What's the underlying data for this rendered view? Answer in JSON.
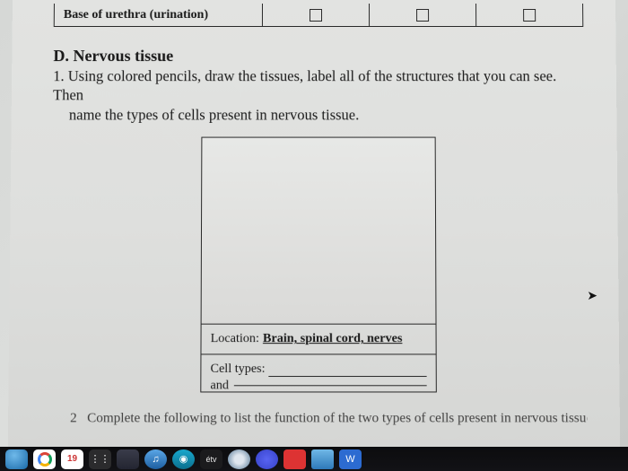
{
  "topRow": {
    "label": "Base of urethra (urination)",
    "checkbox_count": 3
  },
  "section": {
    "heading": "D.  Nervous tissue",
    "item_number": "1.",
    "instruction_line1": "Using colored pencils, draw the tissues, label all of the structures that you can see. Then",
    "instruction_line2": "name the types of cells present in nervous tissue."
  },
  "drawBox": {
    "location_label": "Location:",
    "location_value": "Brain, spinal cord, nerves",
    "celltypes_label": "Cell types:",
    "and_label": "and"
  },
  "cutoff": {
    "num": "2",
    "text": "Complete the following to list the function of the two types of cells present in nervous tissue"
  },
  "taskbar": {
    "cal_text": "19",
    "tv_text": "étv",
    "w_text": "W"
  }
}
